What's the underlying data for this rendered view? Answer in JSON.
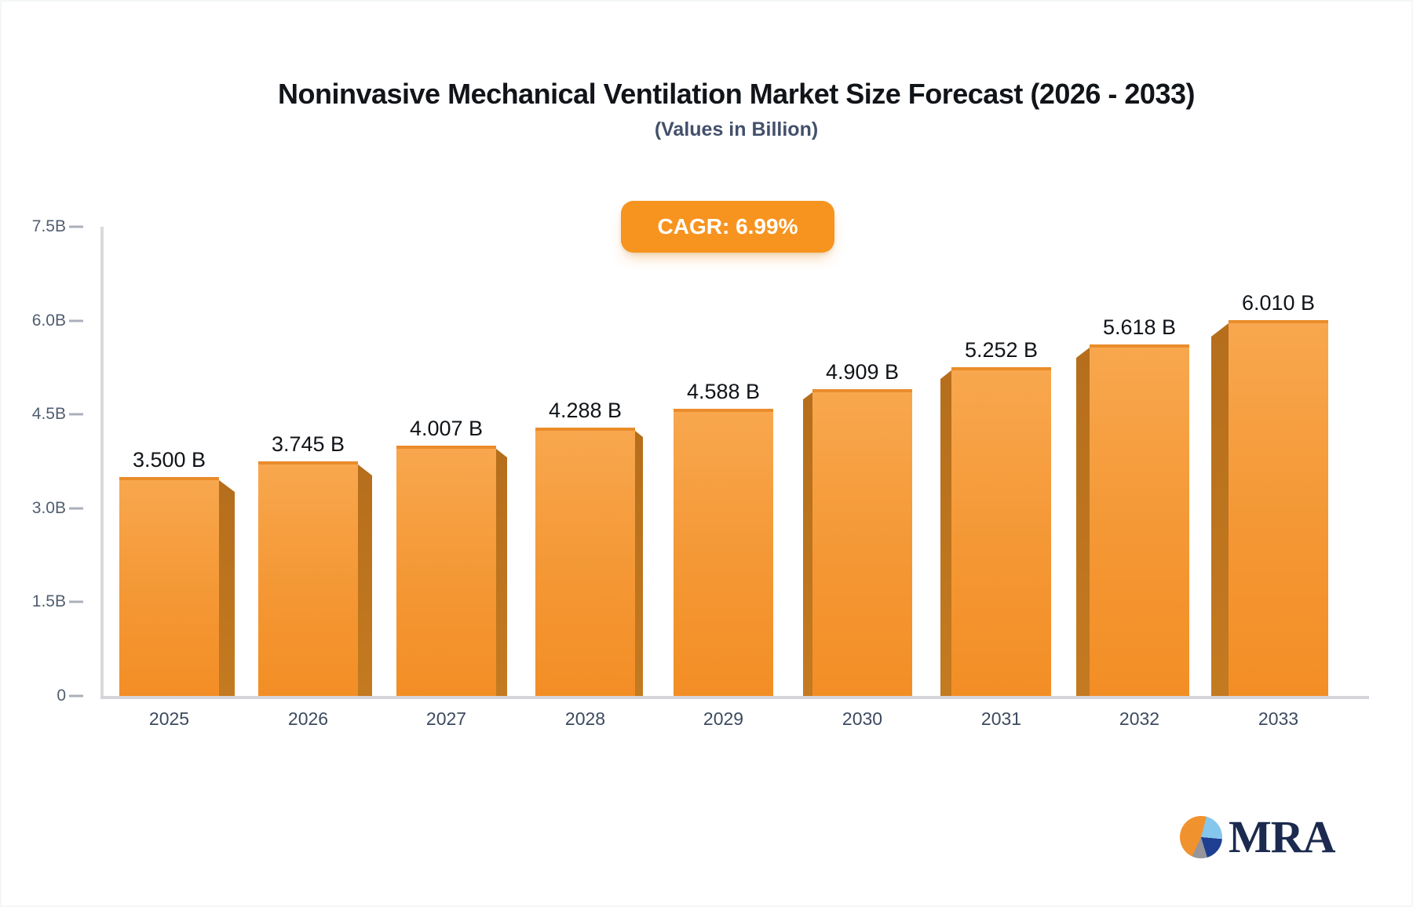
{
  "header": {
    "title": "Noninvasive Mechanical Ventilation Market Size Forecast (2026 - 2033)",
    "subtitle": "(Values in Billion)",
    "cagr_badge": "CAGR: 6.99%"
  },
  "chart_data": {
    "type": "bar",
    "title": "Noninvasive Mechanical Ventilation Market Size Forecast (2026 - 2033)",
    "subtitle": "(Values in Billion)",
    "annotation": "CAGR: 6.99%",
    "categories": [
      "2025",
      "2026",
      "2027",
      "2028",
      "2029",
      "2030",
      "2031",
      "2032",
      "2033"
    ],
    "values": [
      3.5,
      3.745,
      4.007,
      4.288,
      4.588,
      4.909,
      5.252,
      5.618,
      6.01
    ],
    "value_labels": [
      "3.500 B",
      "3.745 B",
      "4.007 B",
      "4.288 B",
      "4.588 B",
      "4.909 B",
      "5.252 B",
      "5.618 B",
      "6.010 B"
    ],
    "xlabel": "",
    "ylabel": "",
    "ylim": [
      0,
      7.5
    ],
    "y_ticks": [
      {
        "label": "7.5B",
        "value": 7.5
      },
      {
        "label": "6.0B",
        "value": 6.0
      },
      {
        "label": "4.5B",
        "value": 4.5
      },
      {
        "label": "3.0B",
        "value": 3.0
      },
      {
        "label": "1.5B",
        "value": 1.5
      },
      {
        "label": "0",
        "value": 0
      }
    ],
    "grid": false,
    "legend": "none",
    "colors": {
      "bar_face_top": "#F8A74E",
      "bar_face_bottom": "#F38E25",
      "bar_top_edge": "#EA8C2B",
      "bar_side_3d": "#B9701C",
      "axis_line": "#D9DADE",
      "tick_text": "#515E70",
      "year_text": "#3C4A5F",
      "value_text": "#101418",
      "badge_bg": "#F7941F",
      "badge_text": "#FFFFFF"
    }
  },
  "logo": {
    "text": "MRA",
    "pie_colors": {
      "orange": "#F0932E",
      "light_blue": "#85C7EC",
      "navy": "#1E3F92",
      "gray": "#95959B"
    }
  }
}
